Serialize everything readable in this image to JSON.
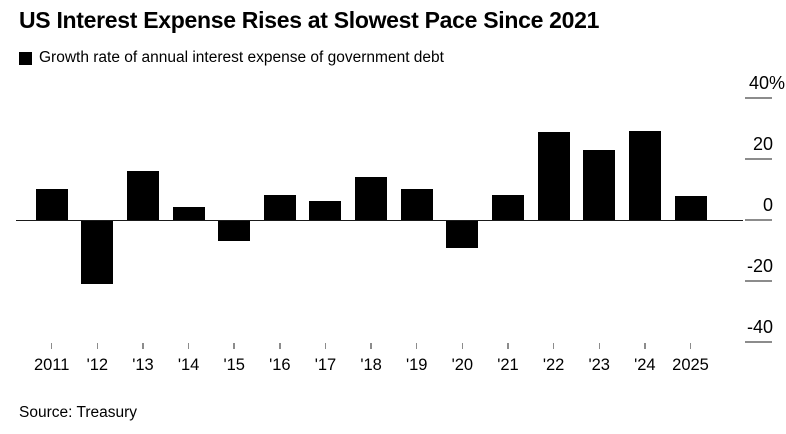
{
  "header": {
    "title": "US Interest Expense Rises at Slowest Pace Since 2021",
    "legend": {
      "swatch_color": "#000000",
      "label": "Growth rate of annual interest expense of government debt"
    }
  },
  "chart_data": {
    "type": "bar",
    "title": "US Interest Expense Rises at Slowest Pace Since 2021",
    "series_name": "Growth rate of annual interest expense of government debt",
    "unit": "%",
    "categories": [
      "2011",
      "'12",
      "'13",
      "'14",
      "'15",
      "'16",
      "'17",
      "'18",
      "'19",
      "'20",
      "'21",
      "'22",
      "'23",
      "'24",
      "2025"
    ],
    "values": [
      10.1,
      -20.5,
      16.0,
      4.2,
      -6.6,
      8.2,
      6.3,
      14.2,
      10.1,
      -8.8,
      8.2,
      28.7,
      23.0,
      29.0,
      7.9
    ],
    "ylim": [
      -40,
      40
    ],
    "yticks": [
      {
        "value": 40,
        "label": "40%"
      },
      {
        "value": 20,
        "label": "20"
      },
      {
        "value": 0,
        "label": "0"
      },
      {
        "value": -20,
        "label": "-20"
      },
      {
        "value": -40,
        "label": "-40"
      }
    ],
    "y_axis_position": "right",
    "grid": false,
    "bar_color": "#000000",
    "axis_line_color": "#1a1a1a",
    "tick_color": "#8c8c8c"
  },
  "footer": {
    "source": "Source: Treasury"
  }
}
